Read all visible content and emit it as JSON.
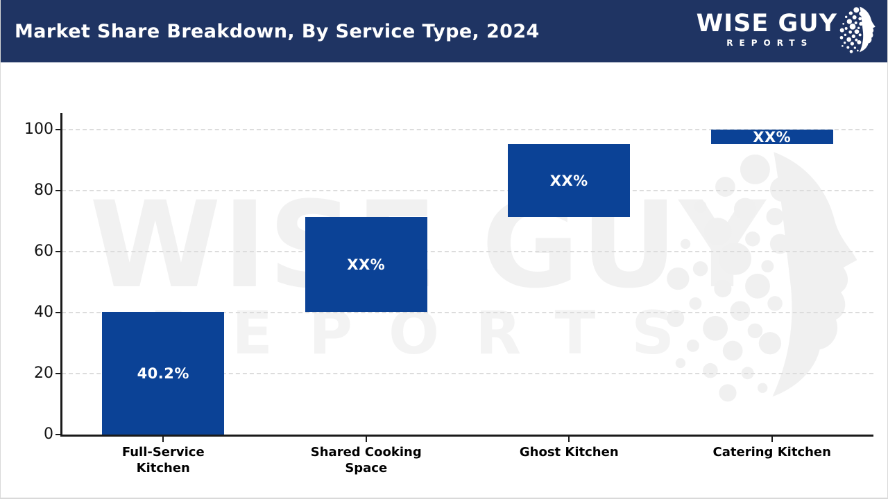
{
  "header": {
    "title": "Market Share Breakdown, By Service Type, 2024",
    "logo": {
      "line1": "WISE GUY",
      "line2": "REPORTS"
    }
  },
  "watermark": {
    "line1": "WISE GUY",
    "line2": "REPORTS"
  },
  "colors": {
    "header_bg": "#1f3463",
    "bar_blue": "#0b4296",
    "bar_label_text": "#ffffff",
    "gridline": "#dcdcdc",
    "axis": "#1a1a1a",
    "watermark": "#f1f1f1"
  },
  "icons": {
    "logo_face": "wiseguy-face-profile-dots-icon"
  },
  "chart_data": {
    "type": "bar",
    "subtype": "waterfall",
    "title": "Market Share Breakdown, By Service Type, 2024",
    "xlabel": "",
    "ylabel": "",
    "ylim": [
      0,
      100
    ],
    "yticks": [
      0,
      20,
      40,
      60,
      80,
      100
    ],
    "grid": "horizontal-dashed",
    "legend": "none",
    "categories": [
      "Full-Service\nKitchen",
      "Shared Cooking\nSpace",
      "Ghost Kitchen",
      "Catering Kitchen"
    ],
    "segments": [
      {
        "category": "Full-Service Kitchen",
        "start": 0,
        "end": 40.2,
        "value": 40.2,
        "label": "40.2%"
      },
      {
        "category": "Shared Cooking Space",
        "start": 40.2,
        "end": 71.3,
        "value": 31.1,
        "label": "XX%"
      },
      {
        "category": "Ghost Kitchen",
        "start": 71.3,
        "end": 95.2,
        "value": 23.9,
        "label": "XX%"
      },
      {
        "category": "Catering Kitchen",
        "start": 95.2,
        "end": 100,
        "value": 4.8,
        "label": "XX%"
      }
    ]
  }
}
